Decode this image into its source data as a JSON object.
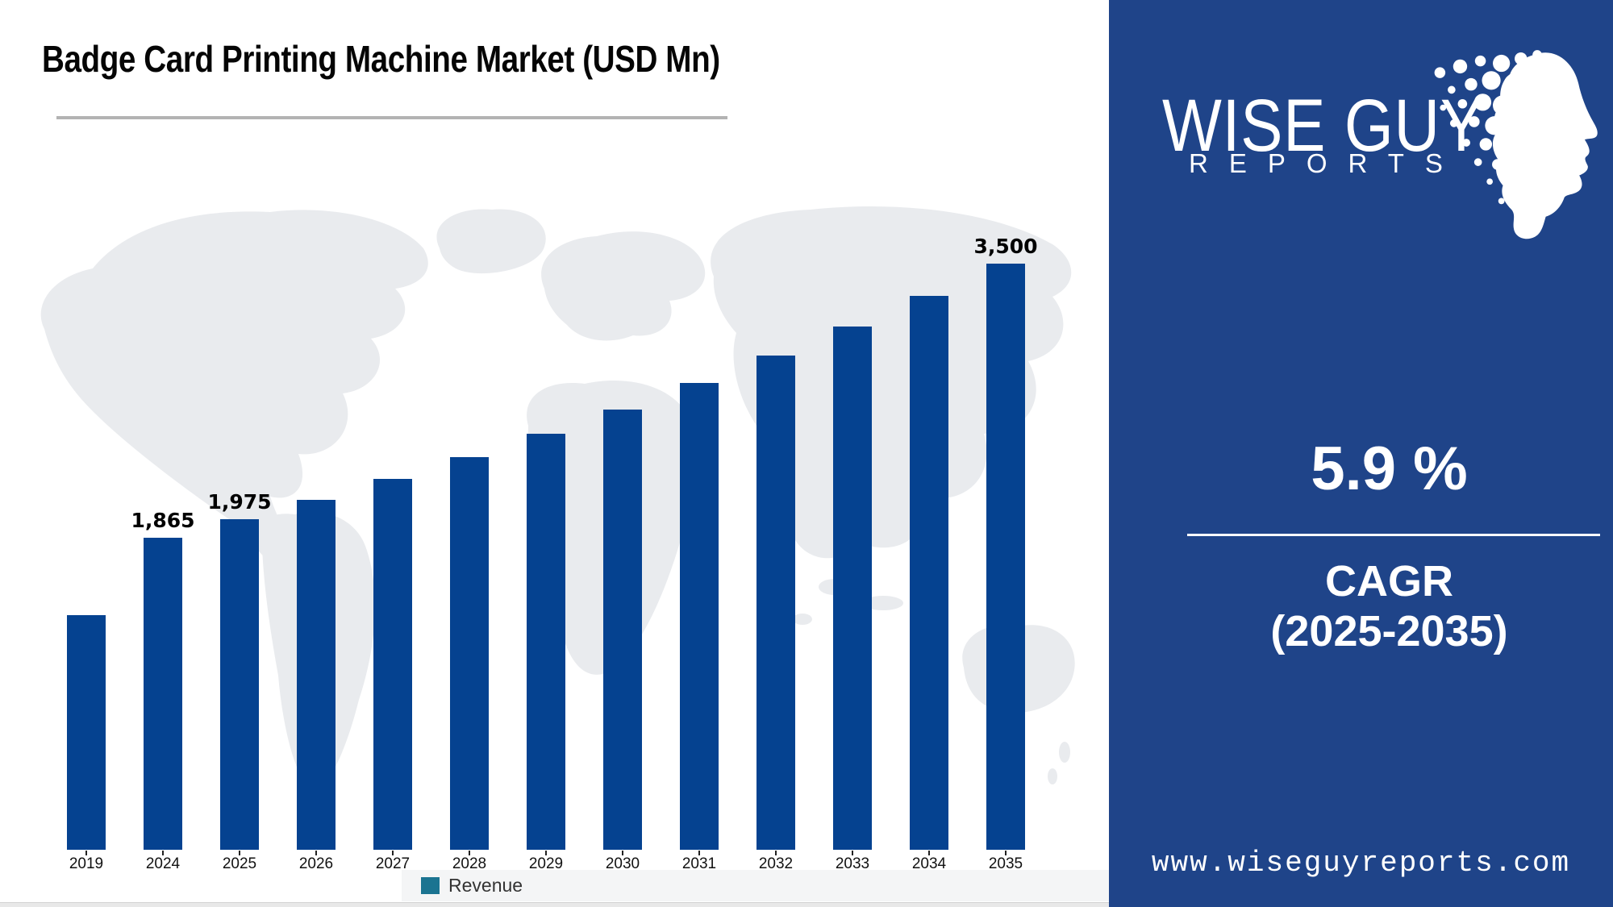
{
  "title": "Badge Card Printing Machine Market (USD Mn)",
  "chart_data": {
    "type": "bar",
    "title": "Badge Card Printing Machine Market (USD Mn)",
    "categories": [
      "2019",
      "2024",
      "2025",
      "2026",
      "2027",
      "2028",
      "2029",
      "2030",
      "2031",
      "2032",
      "2033",
      "2034",
      "2035"
    ],
    "values": [
      1400,
      1865,
      1975,
      2091,
      2215,
      2346,
      2484,
      2631,
      2786,
      2950,
      3124,
      3308,
      3500
    ],
    "point_labels": [
      "",
      "1,865",
      "1,975",
      "",
      "",
      "",
      "",
      "",
      "",
      "",
      "",
      "",
      "3,500"
    ],
    "series": [
      {
        "name": "Revenue",
        "color": "#054290"
      }
    ],
    "xlabel": "",
    "ylabel": "",
    "ylim": [
      0,
      3700
    ],
    "grid": false,
    "y_axis_visible": false,
    "legend_position": "bottom"
  },
  "legend": {
    "label": "Revenue",
    "swatch_color": "#1b7491"
  },
  "brand_panel": {
    "logo_line1": "WISE GUY",
    "logo_line2": "REPORTS",
    "cagr_value": "5.9 %",
    "cagr_line1": "CAGR",
    "cagr_line2": "(2025-2035)",
    "website": "www.wiseguyreports.com"
  },
  "colors": {
    "bar": "#054290",
    "panel": "#1f4489",
    "legend_swatch": "#1b7491",
    "map": "#e9ebee",
    "title_underline": "#b3b3b3",
    "bottom_strip": "#e8e8e8"
  }
}
